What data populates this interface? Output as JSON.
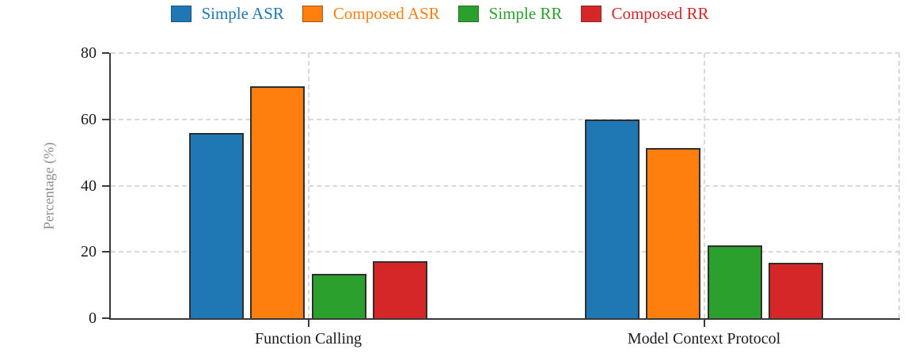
{
  "figure": {
    "background": "#ffffff"
  },
  "chart_data": {
    "type": "bar",
    "title": "",
    "categories": [
      "Function Calling",
      "Model Context Protocol"
    ],
    "series": [
      {
        "name": "Simple ASR",
        "color": "#1f77b4",
        "values": [
          56.0,
          60.0
        ]
      },
      {
        "name": "Composed ASR",
        "color": "#ff7f0e",
        "values": [
          70.0,
          51.4
        ]
      },
      {
        "name": "Simple RR",
        "color": "#2ca02c",
        "values": [
          13.4,
          21.9
        ]
      },
      {
        "name": "Composed RR",
        "color": "#d62728",
        "values": [
          17.2,
          16.8
        ]
      }
    ],
    "xlabel": "",
    "ylabel": "Percentage (%)",
    "ylim": [
      0,
      80
    ],
    "yticks": [
      0,
      20,
      40,
      60,
      80
    ],
    "grid": "dashed horizontal lines at y ticks; dashed vertical lines at category centers and right edge",
    "legend_position": "top-center",
    "bar_edge_color": "#2e2e2e",
    "axis_color": "#3a3a3a",
    "grid_color": "#d9d9d9",
    "tick_label_color": "#1a1a1a",
    "axis_label_color": "#8f8f8f"
  }
}
